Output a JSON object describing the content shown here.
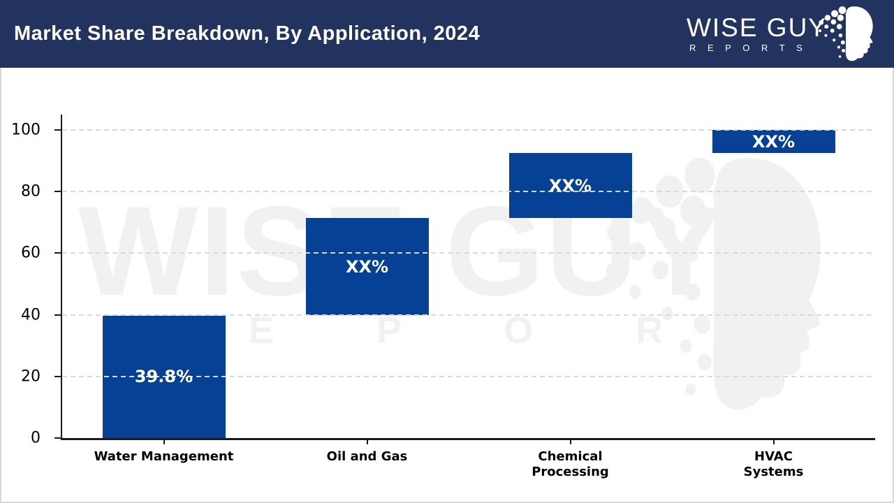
{
  "header": {
    "title": "Market Share Breakdown, By Application, 2024",
    "logo": {
      "name": "WISE GUY",
      "sub": "R E P O R T S"
    }
  },
  "watermark": {
    "name": "WISE GUY",
    "sub": "R E P O R T S"
  },
  "chart_data": {
    "type": "bar",
    "subtype": "waterfall",
    "title": "Market Share Breakdown, By Application, 2024",
    "categories": [
      "Water Management",
      "Oil and Gas",
      "Chemical\nProcessing",
      "HVAC Systems"
    ],
    "segments": [
      {
        "category": "Water Management",
        "start": 0,
        "end": 39.8,
        "label": "39.8%"
      },
      {
        "category": "Oil and Gas",
        "start": 39.8,
        "end": 71.4,
        "label": "XX%"
      },
      {
        "category": "Chemical Processing",
        "start": 71.4,
        "end": 92.5,
        "label": "XX%"
      },
      {
        "category": "HVAC Systems",
        "start": 92.5,
        "end": 100,
        "label": "XX%"
      }
    ],
    "yticks": [
      0,
      20,
      40,
      60,
      80,
      100
    ],
    "ylim": [
      0,
      105
    ],
    "xlabel": "",
    "ylabel": "",
    "grid": "horizontal-dashed",
    "legend": "none",
    "bar_color": "#074195",
    "value_label_color": "#ffffff"
  },
  "colors": {
    "header_bg": "#21335e",
    "bar": "#074195",
    "gridline": "#d9d9d9",
    "axis": "#1a1a1a",
    "watermark": "#f1f1f1",
    "border": "#d8d8d8"
  }
}
